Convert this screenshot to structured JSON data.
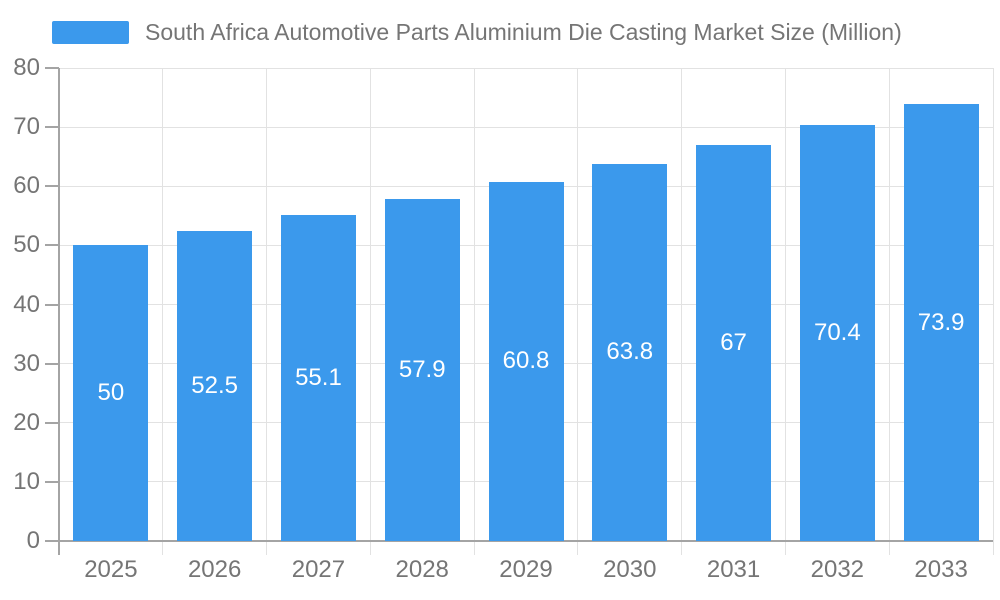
{
  "legend": {
    "series_label": "South Africa Automotive Parts Aluminium Die Casting Market Size (Million)"
  },
  "chart_data": {
    "type": "bar",
    "title": "South Africa Automotive Parts Aluminium Die Casting Market Size (Million)",
    "categories": [
      "2025",
      "2026",
      "2027",
      "2028",
      "2029",
      "2030",
      "2031",
      "2032",
      "2033"
    ],
    "values": [
      50,
      52.5,
      55.1,
      57.9,
      60.8,
      63.8,
      67,
      70.4,
      73.9
    ],
    "value_labels": [
      "50",
      "52.5",
      "55.1",
      "57.9",
      "60.8",
      "63.8",
      "67",
      "70.4",
      "73.9"
    ],
    "xlabel": "",
    "ylabel": "",
    "ylim": [
      0,
      80
    ],
    "yticks": [
      0,
      10,
      20,
      30,
      40,
      50,
      60,
      70,
      80
    ],
    "grid": true,
    "legend_position": "top",
    "colors": {
      "bar": "#3B99EC",
      "bar_value_text": "#FFFFFF",
      "axis": "#A4A4A4",
      "gridline": "#E2E2E2",
      "tick_text": "#757575"
    }
  }
}
